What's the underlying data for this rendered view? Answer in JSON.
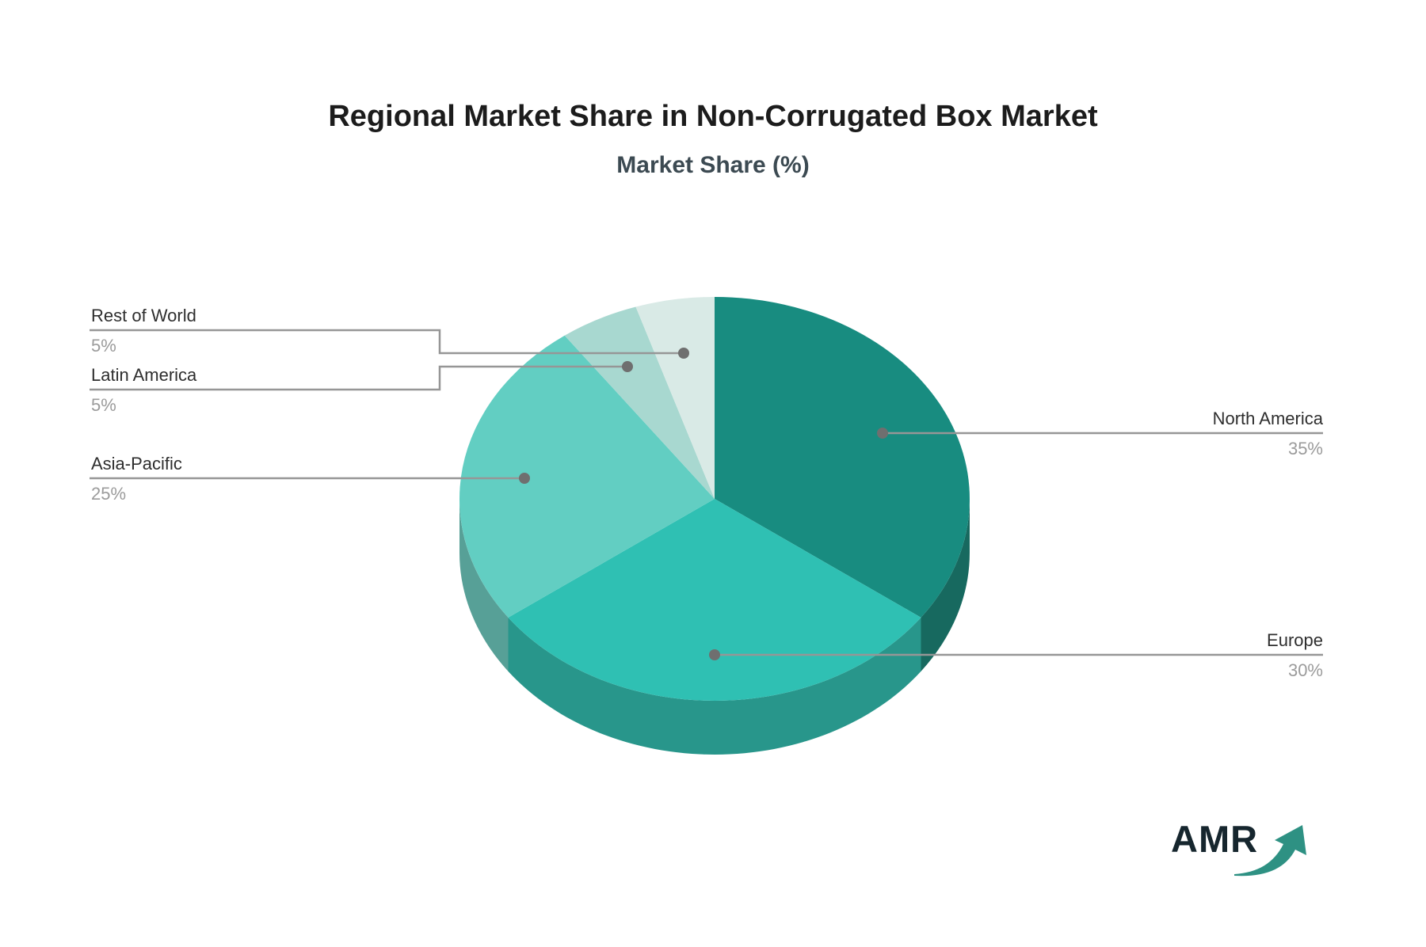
{
  "title": "Regional Market Share in Non-Corrugated Box Market",
  "subtitle": "Market Share (%)",
  "chart_data": {
    "type": "pie",
    "style": "3d",
    "title": "Regional Market Share in Non-Corrugated Box Market",
    "subtitle": "Market Share (%)",
    "unit": "%",
    "start_angle_deg": 0,
    "direction": "clockwise",
    "legend_position": "none",
    "connector_color": "#969696",
    "connector_dot_color": "#6f6f6f",
    "slices": [
      {
        "label": "North America",
        "value": 35,
        "display": "35%",
        "color": "#188C80",
        "side_color": "#17695F",
        "label_side": "right"
      },
      {
        "label": "Europe",
        "value": 30,
        "display": "30%",
        "color": "#2FC0B3",
        "side_color": "#28968B",
        "label_side": "right"
      },
      {
        "label": "Asia-Pacific",
        "value": 25,
        "display": "25%",
        "color": "#62CEC2",
        "side_color": "#57A097",
        "label_side": "left"
      },
      {
        "label": "Latin America",
        "value": 5,
        "display": "5%",
        "color": "#A8D8D0",
        "side_color": "#8FC0B8",
        "label_side": "left"
      },
      {
        "label": "Rest of World",
        "value": 5,
        "display": "5%",
        "color": "#D9EAE6",
        "side_color": "#C3DBD5",
        "label_side": "left"
      }
    ]
  },
  "logo": {
    "text": "AMR",
    "text_color": "#16262e",
    "arrow_color": "#2E9183"
  }
}
